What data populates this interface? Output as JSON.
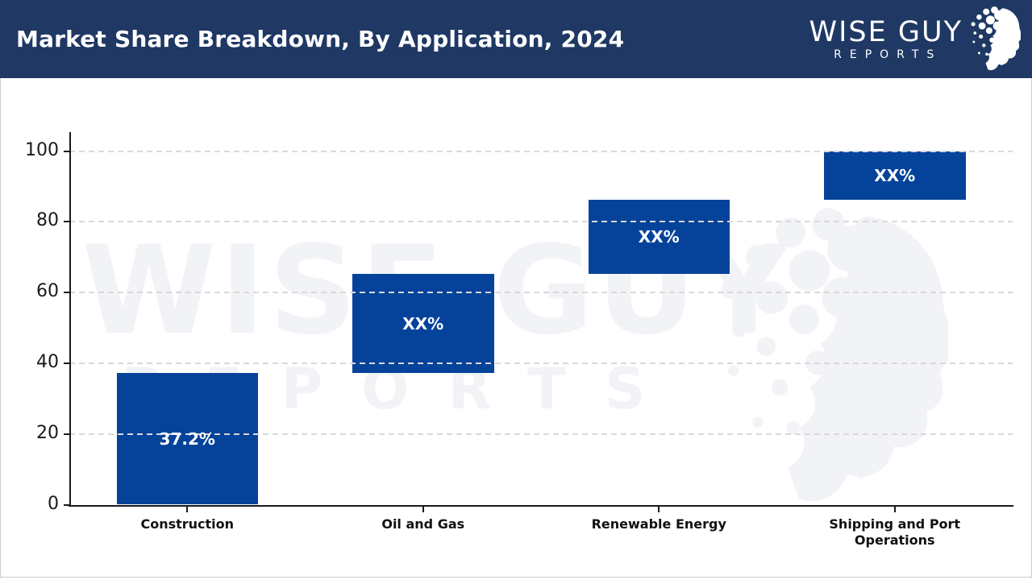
{
  "header": {
    "title": "Market Share Breakdown, By Application, 2024",
    "logo": {
      "name": "WISE GUY",
      "sub": "REPORTS"
    }
  },
  "watermark": {
    "line1": "WISE GUY",
    "line2": "REPORTS"
  },
  "chart_data": {
    "type": "bar",
    "subtype": "floating-waterfall",
    "title": "Market Share Breakdown, By Application, 2024",
    "categories": [
      "Construction",
      "Oil and Gas",
      "Renewable Energy",
      "Shipping and Port Operations"
    ],
    "segments": [
      {
        "category": "Construction",
        "start": 0,
        "end": 37.2,
        "label": "37.2%"
      },
      {
        "category": "Oil and Gas",
        "start": 37.2,
        "end": 65.2,
        "label": "XX%"
      },
      {
        "category": "Renewable Energy",
        "start": 65.2,
        "end": 86.3,
        "label": "XX%"
      },
      {
        "category": "Shipping and Port Operations",
        "start": 86.3,
        "end": 100,
        "label": "XX%"
      }
    ],
    "y_ticks": [
      0,
      20,
      40,
      60,
      80,
      100
    ],
    "ylim": [
      0,
      105
    ],
    "xlabel": "",
    "ylabel": "",
    "grid": "horizontal-dashed",
    "legend": "none",
    "colors": {
      "bar": "#05439B",
      "bar_label": "#FFFFFF",
      "grid": "#D9D9D9",
      "axis": "#1A1A1A",
      "header_bg": "#1F3864",
      "watermark": "#F2F3F6"
    }
  }
}
